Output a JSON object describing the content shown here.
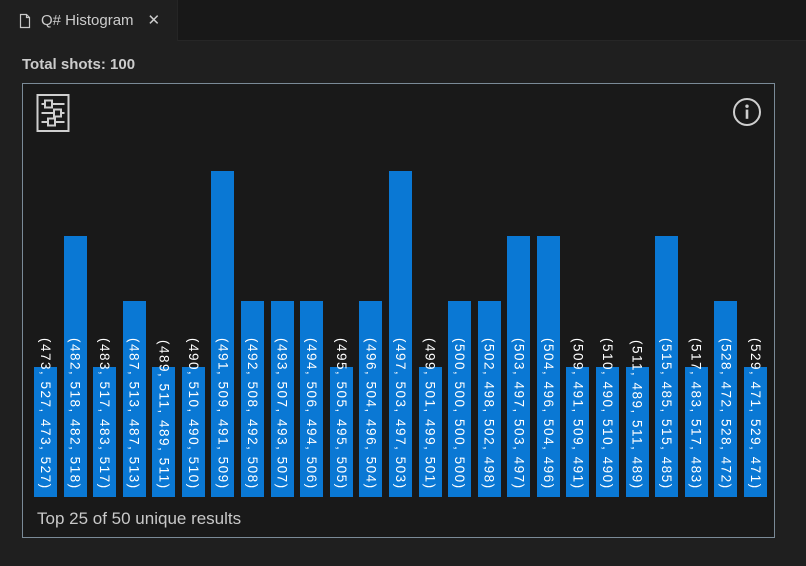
{
  "tab": {
    "title": "Q# Histogram",
    "close_glyph": "✕"
  },
  "header": {
    "total_shots": "Total shots: 100"
  },
  "panel": {
    "caption": "Top 25 of 50 unique results"
  },
  "colors": {
    "bar_blue": "#0a78d4",
    "panel_border": "#7a8a97",
    "panel_bg": "#191919",
    "page_bg": "#1f1f1f",
    "tabbar_bg": "#181818",
    "text": "#cccccc",
    "bar_label_text": "#ffffff"
  },
  "icons": {
    "tab_file": "file-icon",
    "top_left": "filter-settings-icon",
    "top_right": "info-icon",
    "tab_close": "close-icon"
  },
  "chart_data": {
    "type": "bar",
    "title": "Q# Histogram",
    "total_shots": 100,
    "caption": "Top 25 of 50 unique results",
    "categories": [
      "(473, 527, 473, 527)",
      "(482, 518, 482, 518)",
      "(483, 517, 483, 517)",
      "(487, 513, 487, 513)",
      "(489, 511, 489, 511)",
      "(490, 510, 490, 510)",
      "(491, 509, 491, 509)",
      "(492, 508, 492, 508)",
      "(493, 507, 493, 507)",
      "(494, 506, 494, 506)",
      "(495, 505, 495, 505)",
      "(496, 504, 496, 504)",
      "(497, 503, 497, 503)",
      "(499, 501, 499, 501)",
      "(500, 500, 500, 500)",
      "(502, 498, 502, 498)",
      "(503, 497, 503, 497)",
      "(504, 496, 504, 496)",
      "(509, 491, 509, 491)",
      "(510, 490, 510, 490)",
      "(511, 489, 511, 489)",
      "(515, 485, 515, 485)",
      "(517, 483, 517, 483)",
      "(528, 472, 528, 472)",
      "(529, 471, 529, 471)"
    ],
    "values": [
      2,
      4,
      2,
      3,
      2,
      2,
      5,
      3,
      3,
      3,
      2,
      3,
      5,
      2,
      3,
      3,
      4,
      4,
      2,
      2,
      2,
      4,
      2,
      3,
      2
    ],
    "value_axis": "hidden",
    "bar_color": "#0a78d4",
    "bar_label_rotation_deg": 90,
    "orientation": "vertical",
    "grid": false,
    "legend": false
  }
}
